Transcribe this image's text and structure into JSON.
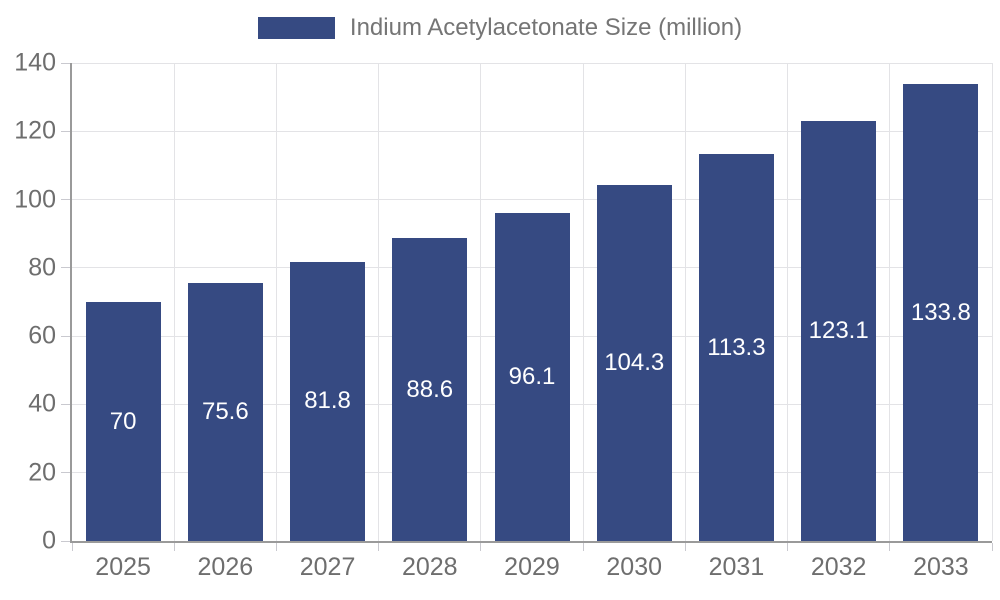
{
  "chart_data": {
    "type": "bar",
    "title": "Indium Acetylacetonate Size (million)",
    "series_name": "Indium Acetylacetonate Size (million)",
    "categories": [
      "2025",
      "2026",
      "2027",
      "2028",
      "2029",
      "2030",
      "2031",
      "2032",
      "2033"
    ],
    "values": [
      70,
      75.6,
      81.8,
      88.6,
      96.1,
      104.3,
      113.3,
      123.1,
      133.8
    ],
    "xlabel": "",
    "ylabel": "",
    "ylim": [
      0,
      140
    ],
    "yticks": [
      0,
      20,
      40,
      60,
      80,
      100,
      120,
      140
    ],
    "grid": true,
    "legend_position": "top-center",
    "colors": {
      "bar": "#364a82",
      "value_label": "#ffffff",
      "axis_text": "#6e6e6e",
      "legend_text": "#757575",
      "gridline": "#e3e3e6",
      "axis_line": "#9a9a9a",
      "tick": "#c9c9cf",
      "background": "#ffffff"
    }
  }
}
